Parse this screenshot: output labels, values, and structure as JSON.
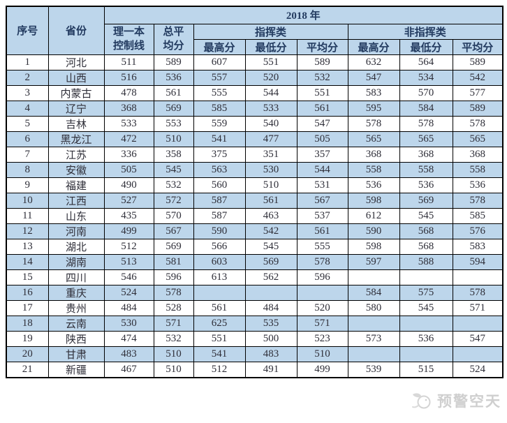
{
  "table": {
    "header": {
      "seq": "序号",
      "province": "省份",
      "year": "2018 年",
      "control_line_1": "理一本",
      "control_line_2": "控制线",
      "total_avg_1": "总平",
      "total_avg_2": "均分",
      "command_group": "指挥类",
      "non_command_group": "非指挥类",
      "max": "最高分",
      "min": "最低分",
      "avg": "平均分"
    },
    "cell_names": [
      "row-number",
      "province-name",
      "control-line-score",
      "total-average-score",
      "command-max-score",
      "command-min-score",
      "command-average-score",
      "noncommand-max-score",
      "noncommand-min-score",
      "noncommand-average-score"
    ],
    "rows": [
      [
        "1",
        "河北",
        "511",
        "589",
        "607",
        "551",
        "589",
        "632",
        "564",
        "589"
      ],
      [
        "2",
        "山西",
        "516",
        "536",
        "557",
        "520",
        "532",
        "547",
        "534",
        "542"
      ],
      [
        "3",
        "内蒙古",
        "478",
        "561",
        "555",
        "544",
        "551",
        "583",
        "570",
        "577"
      ],
      [
        "4",
        "辽宁",
        "368",
        "569",
        "585",
        "533",
        "561",
        "595",
        "584",
        "589"
      ],
      [
        "5",
        "吉林",
        "533",
        "553",
        "559",
        "540",
        "547",
        "578",
        "578",
        "578"
      ],
      [
        "6",
        "黑龙江",
        "472",
        "510",
        "541",
        "477",
        "505",
        "565",
        "565",
        "565"
      ],
      [
        "7",
        "江苏",
        "336",
        "358",
        "375",
        "351",
        "357",
        "368",
        "368",
        "368"
      ],
      [
        "8",
        "安徽",
        "505",
        "545",
        "563",
        "530",
        "544",
        "558",
        "558",
        "558"
      ],
      [
        "9",
        "福建",
        "490",
        "532",
        "560",
        "510",
        "531",
        "536",
        "536",
        "536"
      ],
      [
        "10",
        "江西",
        "527",
        "572",
        "587",
        "561",
        "567",
        "598",
        "569",
        "578"
      ],
      [
        "11",
        "山东",
        "435",
        "570",
        "587",
        "463",
        "537",
        "612",
        "545",
        "585"
      ],
      [
        "12",
        "河南",
        "499",
        "567",
        "590",
        "542",
        "561",
        "590",
        "568",
        "576"
      ],
      [
        "13",
        "湖北",
        "512",
        "569",
        "566",
        "545",
        "555",
        "598",
        "568",
        "583"
      ],
      [
        "14",
        "湖南",
        "513",
        "581",
        "603",
        "569",
        "578",
        "597",
        "588",
        "594"
      ],
      [
        "15",
        "四川",
        "546",
        "596",
        "613",
        "562",
        "596",
        "",
        "",
        ""
      ],
      [
        "16",
        "重庆",
        "524",
        "578",
        "",
        "",
        "",
        "584",
        "575",
        "578"
      ],
      [
        "17",
        "贵州",
        "484",
        "528",
        "561",
        "484",
        "520",
        "580",
        "545",
        "571"
      ],
      [
        "18",
        "云南",
        "530",
        "571",
        "625",
        "535",
        "571",
        "",
        "",
        ""
      ],
      [
        "19",
        "陕西",
        "474",
        "532",
        "551",
        "500",
        "523",
        "573",
        "536",
        "547"
      ],
      [
        "20",
        "甘肃",
        "483",
        "510",
        "541",
        "483",
        "510",
        "",
        "",
        ""
      ],
      [
        "21",
        "新疆",
        "467",
        "510",
        "512",
        "491",
        "499",
        "539",
        "515",
        "524"
      ]
    ]
  },
  "watermark": {
    "text": "预警空天"
  },
  "colors": {
    "header_bg": "#BDD6EB",
    "row_bg": "#FFFFFF",
    "row_alt_bg": "#BDD6EB",
    "border": "#000000",
    "header_text": "#223A5F",
    "body_text": "#2E2E38",
    "watermark_text": "#CFCFCF"
  }
}
